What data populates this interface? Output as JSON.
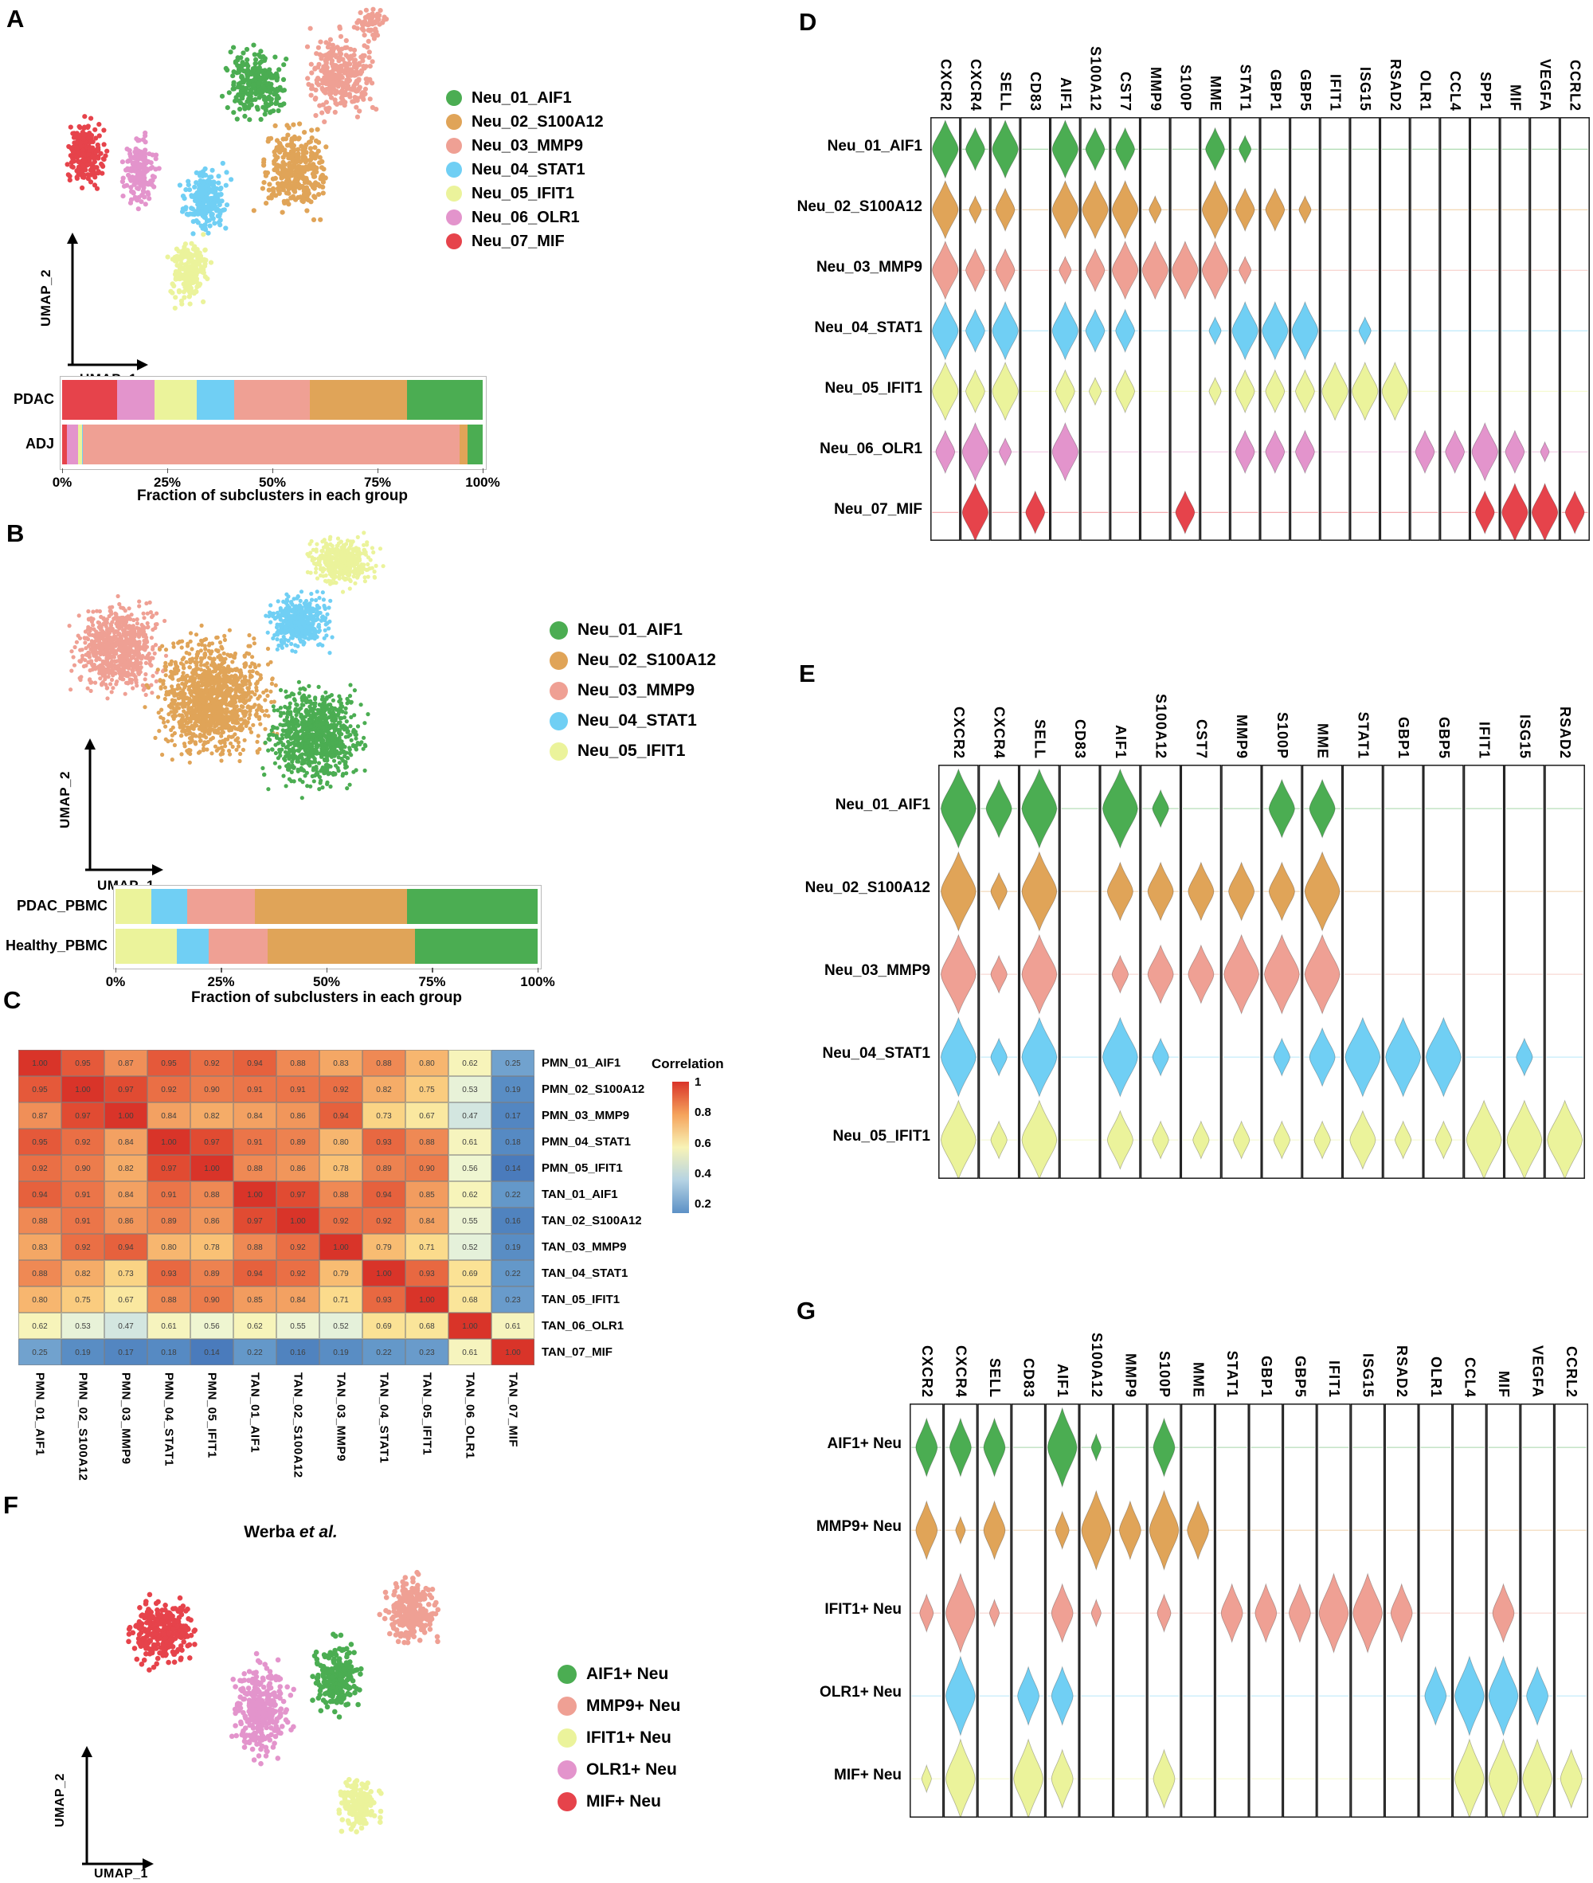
{
  "panel_letters": {
    "A": "A",
    "B": "B",
    "C": "C",
    "D": "D",
    "E": "E",
    "F": "F",
    "G": "G"
  },
  "axis": {
    "x": "UMAP_1",
    "y": "UMAP_2"
  },
  "colors": {
    "green": "#4BAD52",
    "orange": "#E0A458",
    "salmon": "#EFA094",
    "blue": "#70CFF4",
    "yellow": "#EBF39B",
    "orchid": "#E394CC",
    "red": "#E6434B"
  },
  "chart_data": {
    "A": {
      "type": "scatter",
      "legend": [
        {
          "label": "Neu_01_AIF1",
          "color": "green"
        },
        {
          "label": "Neu_02_S100A12",
          "color": "orange"
        },
        {
          "label": "Neu_03_MMP9",
          "color": "salmon"
        },
        {
          "label": "Neu_04_STAT1",
          "color": "blue"
        },
        {
          "label": "Neu_05_IFIT1",
          "color": "yellow"
        },
        {
          "label": "Neu_06_OLR1",
          "color": "orchid"
        },
        {
          "label": "Neu_07_MIF",
          "color": "red"
        }
      ],
      "clusters": [
        {
          "color": "green",
          "cx": 0.52,
          "cy": 0.22,
          "rx": 0.1,
          "ry": 0.13,
          "n": 260
        },
        {
          "color": "salmon",
          "cx": 0.73,
          "cy": 0.2,
          "rx": 0.11,
          "ry": 0.15,
          "n": 320
        },
        {
          "color": "salmon",
          "cx": 0.8,
          "cy": 0.05,
          "rx": 0.05,
          "ry": 0.05,
          "n": 60
        },
        {
          "color": "orange",
          "cx": 0.62,
          "cy": 0.47,
          "rx": 0.11,
          "ry": 0.16,
          "n": 330
        },
        {
          "color": "blue",
          "cx": 0.4,
          "cy": 0.55,
          "rx": 0.07,
          "ry": 0.12,
          "n": 210
        },
        {
          "color": "yellow",
          "cx": 0.36,
          "cy": 0.76,
          "rx": 0.06,
          "ry": 0.12,
          "n": 190
        },
        {
          "color": "orchid",
          "cx": 0.24,
          "cy": 0.47,
          "rx": 0.055,
          "ry": 0.13,
          "n": 170
        },
        {
          "color": "red",
          "cx": 0.11,
          "cy": 0.42,
          "rx": 0.065,
          "ry": 0.12,
          "n": 230
        }
      ],
      "bar": {
        "type": "bar",
        "stacked": true,
        "orientation": "horizontal",
        "xlabel": "Fraction of subclusters in each group",
        "ticks": [
          "0%",
          "25%",
          "50%",
          "75%",
          "100%"
        ],
        "rows": [
          {
            "label": "PDAC",
            "segments": [
              [
                "red",
                13
              ],
              [
                "orchid",
                9
              ],
              [
                "yellow",
                10
              ],
              [
                "blue",
                9
              ],
              [
                "salmon",
                18
              ],
              [
                "orange",
                23
              ],
              [
                "green",
                18
              ]
            ]
          },
          {
            "label": "ADJ",
            "segments": [
              [
                "red",
                1.2
              ],
              [
                "orchid",
                2.6
              ],
              [
                "yellow",
                0.9
              ],
              [
                "blue",
                0.3
              ],
              [
                "salmon",
                89.5
              ],
              [
                "orange",
                2.0
              ],
              [
                "green",
                3.5
              ]
            ]
          }
        ]
      }
    },
    "B": {
      "type": "scatter",
      "legend": [
        {
          "label": "Neu_01_AIF1",
          "color": "green"
        },
        {
          "label": "Neu_02_S100A12",
          "color": "orange"
        },
        {
          "label": "Neu_03_MMP9",
          "color": "salmon"
        },
        {
          "label": "Neu_04_STAT1",
          "color": "blue"
        },
        {
          "label": "Neu_05_IFIT1",
          "color": "yellow"
        }
      ],
      "clusters": [
        {
          "color": "salmon",
          "cx": 0.2,
          "cy": 0.38,
          "rx": 0.13,
          "ry": 0.16,
          "n": 750
        },
        {
          "color": "orange",
          "cx": 0.42,
          "cy": 0.52,
          "rx": 0.17,
          "ry": 0.22,
          "n": 1250
        },
        {
          "color": "blue",
          "cx": 0.62,
          "cy": 0.3,
          "rx": 0.09,
          "ry": 0.1,
          "n": 430
        },
        {
          "color": "yellow",
          "cx": 0.72,
          "cy": 0.13,
          "rx": 0.1,
          "ry": 0.09,
          "n": 430
        },
        {
          "color": "green",
          "cx": 0.66,
          "cy": 0.63,
          "rx": 0.14,
          "ry": 0.18,
          "n": 900
        }
      ],
      "bar": {
        "type": "bar",
        "stacked": true,
        "orientation": "horizontal",
        "xlabel": "Fraction of subclusters in each group",
        "ticks": [
          "0%",
          "25%",
          "50%",
          "75%",
          "100%"
        ],
        "rows": [
          {
            "label": "PDAC_PBMC",
            "segments": [
              [
                "yellow",
                8.5
              ],
              [
                "blue",
                8.5
              ],
              [
                "salmon",
                16
              ],
              [
                "orange",
                36
              ],
              [
                "green",
                31
              ]
            ]
          },
          {
            "label": "Healthy_PBMC",
            "segments": [
              [
                "yellow",
                14.5
              ],
              [
                "blue",
                7.5
              ],
              [
                "salmon",
                14
              ],
              [
                "orange",
                35
              ],
              [
                "green",
                29
              ]
            ]
          }
        ]
      }
    },
    "C": {
      "type": "heatmap",
      "rows": [
        "PMN_01_AIF1",
        "PMN_02_S100A12",
        "PMN_03_MMP9",
        "PMN_04_STAT1",
        "PMN_05_IFIT1",
        "TAN_01_AIF1",
        "TAN_02_S100A12",
        "TAN_03_MMP9",
        "TAN_04_STAT1",
        "TAN_05_IFIT1",
        "TAN_06_OLR1",
        "TAN_07_MIF"
      ],
      "cols": [
        "PMN_01_AIF1",
        "PMN_02_S100A12",
        "PMN_03_MMP9",
        "PMN_04_STAT1",
        "PMN_05_IFIT1",
        "TAN_01_AIF1",
        "TAN_02_S100A12",
        "TAN_03_MMP9",
        "TAN_04_STAT1",
        "TAN_05_IFIT1",
        "TAN_06_OLR1",
        "TAN_07_MIF"
      ],
      "values": [
        [
          1.0,
          0.95,
          0.87,
          0.95,
          0.92,
          0.94,
          0.88,
          0.83,
          0.88,
          0.8,
          0.62,
          0.25
        ],
        [
          0.95,
          1.0,
          0.97,
          0.92,
          0.9,
          0.91,
          0.91,
          0.92,
          0.82,
          0.75,
          0.53,
          0.19
        ],
        [
          0.87,
          0.97,
          1.0,
          0.84,
          0.82,
          0.84,
          0.86,
          0.94,
          0.73,
          0.67,
          0.47,
          0.17
        ],
        [
          0.95,
          0.92,
          0.84,
          1.0,
          0.97,
          0.91,
          0.89,
          0.8,
          0.93,
          0.88,
          0.61,
          0.18
        ],
        [
          0.92,
          0.9,
          0.82,
          0.97,
          1.0,
          0.88,
          0.86,
          0.78,
          0.89,
          0.9,
          0.56,
          0.14
        ],
        [
          0.94,
          0.91,
          0.84,
          0.91,
          0.88,
          1.0,
          0.97,
          0.88,
          0.94,
          0.85,
          0.62,
          0.22
        ],
        [
          0.88,
          0.91,
          0.86,
          0.89,
          0.86,
          0.97,
          1.0,
          0.92,
          0.92,
          0.84,
          0.55,
          0.16
        ],
        [
          0.83,
          0.92,
          0.94,
          0.8,
          0.78,
          0.88,
          0.92,
          1.0,
          0.79,
          0.71,
          0.52,
          0.19
        ],
        [
          0.88,
          0.82,
          0.73,
          0.93,
          0.89,
          0.94,
          0.92,
          0.79,
          1.0,
          0.93,
          0.69,
          0.22
        ],
        [
          0.8,
          0.75,
          0.67,
          0.88,
          0.9,
          0.85,
          0.84,
          0.71,
          0.93,
          1.0,
          0.68,
          0.23
        ],
        [
          0.62,
          0.53,
          0.47,
          0.61,
          0.56,
          0.62,
          0.55,
          0.52,
          0.69,
          0.68,
          1.0,
          0.61
        ],
        [
          0.25,
          0.19,
          0.17,
          0.18,
          0.14,
          0.22,
          0.16,
          0.19,
          0.22,
          0.23,
          0.61,
          1.0
        ]
      ],
      "colorbar": {
        "title": "Correlation",
        "ticks": [
          1,
          0.8,
          0.6,
          0.4,
          0.2
        ],
        "vmin": 0.14,
        "vmax": 1,
        "colors": [
          "#D93429",
          "#F5A35C",
          "#F8F3B6",
          "#B5D3E3",
          "#5C91C6"
        ]
      }
    },
    "D": {
      "type": "violin",
      "genes": [
        "CXCR2",
        "CXCR4",
        "SELL",
        "CD83",
        "AIF1",
        "S100A12",
        "CST7",
        "MMP9",
        "S100P",
        "MME",
        "STAT1",
        "GBP1",
        "GBP5",
        "IFIT1",
        "ISG15",
        "RSAD2",
        "OLR1",
        "CCL4",
        "SPP1",
        "MIF",
        "VEGFA",
        "CCRL2"
      ],
      "rows": [
        {
          "label": "Neu_01_AIF1",
          "color": "green",
          "sizes": [
            3,
            2,
            3,
            0,
            3,
            2,
            2,
            0,
            0,
            2,
            1,
            0,
            0,
            0,
            0,
            0,
            0,
            0,
            0,
            0,
            0,
            0
          ]
        },
        {
          "label": "Neu_02_S100A12",
          "color": "orange",
          "sizes": [
            3,
            1,
            2,
            0,
            3,
            3,
            3,
            1,
            0,
            3,
            2,
            2,
            1,
            0,
            0,
            0,
            0,
            0,
            0,
            0,
            0,
            0
          ]
        },
        {
          "label": "Neu_03_MMP9",
          "color": "salmon",
          "sizes": [
            3,
            2,
            2,
            0,
            1,
            2,
            3,
            3,
            3,
            3,
            1,
            0,
            0,
            0,
            0,
            0,
            0,
            0,
            0,
            0,
            0,
            0
          ]
        },
        {
          "label": "Neu_04_STAT1",
          "color": "blue",
          "sizes": [
            3,
            2,
            3,
            0,
            3,
            2,
            2,
            0,
            0,
            1,
            3,
            3,
            3,
            0,
            1,
            0,
            0,
            0,
            0,
            0,
            0,
            0
          ]
        },
        {
          "label": "Neu_05_IFIT1",
          "color": "yellow",
          "sizes": [
            3,
            2,
            3,
            0,
            2,
            1,
            2,
            0,
            0,
            1,
            2,
            2,
            2,
            3,
            3,
            3,
            0,
            0,
            0,
            0,
            0,
            0
          ]
        },
        {
          "label": "Neu_06_OLR1",
          "color": "orchid",
          "sizes": [
            2,
            3,
            1,
            0,
            3,
            0,
            0,
            0,
            0,
            0,
            2,
            2,
            2,
            0,
            0,
            0,
            2,
            2,
            3,
            2,
            0.5,
            0
          ]
        },
        {
          "label": "Neu_07_MIF",
          "color": "red",
          "sizes": [
            0,
            3,
            0,
            2,
            0,
            0,
            0,
            0,
            2,
            0,
            0,
            0,
            0,
            0,
            0,
            0,
            0,
            0,
            2,
            3,
            3,
            2
          ]
        }
      ]
    },
    "E": {
      "type": "violin",
      "genes": [
        "CXCR2",
        "CXCR4",
        "SELL",
        "CD83",
        "AIF1",
        "S100A12",
        "CST7",
        "MMP9",
        "S100P",
        "MME",
        "STAT1",
        "GBP1",
        "GBP5",
        "IFIT1",
        "ISG15",
        "RSAD2"
      ],
      "rows": [
        {
          "label": "Neu_01_AIF1",
          "color": "green",
          "sizes": [
            3,
            2,
            3,
            0,
            3,
            1,
            0,
            0,
            2,
            2,
            0,
            0,
            0,
            0,
            0,
            0
          ]
        },
        {
          "label": "Neu_02_S100A12",
          "color": "orange",
          "sizes": [
            3,
            1,
            3,
            0,
            2,
            2,
            2,
            2,
            2,
            3,
            0,
            0,
            0,
            0,
            0,
            0
          ]
        },
        {
          "label": "Neu_03_MMP9",
          "color": "salmon",
          "sizes": [
            3,
            1,
            3,
            0,
            1,
            2,
            2,
            3,
            3,
            3,
            0,
            0,
            0,
            0,
            0,
            0
          ]
        },
        {
          "label": "Neu_04_STAT1",
          "color": "blue",
          "sizes": [
            3,
            1,
            3,
            0,
            3,
            1,
            0,
            0,
            1,
            2,
            3,
            3,
            3,
            0,
            1,
            0
          ]
        },
        {
          "label": "Neu_05_IFIT1",
          "color": "yellow",
          "sizes": [
            3,
            1,
            3,
            0,
            2,
            1,
            1,
            1,
            1,
            1,
            2,
            1,
            1,
            3,
            3,
            3
          ]
        }
      ]
    },
    "F": {
      "type": "scatter",
      "title_main": "Werba ",
      "title_italic": "et al.",
      "legend": [
        {
          "label": "AIF1+ Neu",
          "color": "green"
        },
        {
          "label": "MMP9+ Neu",
          "color": "salmon"
        },
        {
          "label": "IFIT1+ Neu",
          "color": "yellow"
        },
        {
          "label": "OLR1+ Neu",
          "color": "orchid"
        },
        {
          "label": "MIF+ Neu",
          "color": "red"
        }
      ],
      "clusters": [
        {
          "color": "red",
          "cx": 0.16,
          "cy": 0.25,
          "rx": 0.11,
          "ry": 0.13,
          "n": 280
        },
        {
          "color": "orchid",
          "cx": 0.42,
          "cy": 0.5,
          "rx": 0.1,
          "ry": 0.2,
          "n": 300
        },
        {
          "color": "green",
          "cx": 0.62,
          "cy": 0.4,
          "rx": 0.08,
          "ry": 0.16,
          "n": 240
        },
        {
          "color": "salmon",
          "cx": 0.82,
          "cy": 0.18,
          "rx": 0.09,
          "ry": 0.14,
          "n": 260
        },
        {
          "color": "yellow",
          "cx": 0.68,
          "cy": 0.8,
          "rx": 0.07,
          "ry": 0.11,
          "n": 170
        }
      ]
    },
    "G": {
      "type": "violin",
      "genes": [
        "CXCR2",
        "CXCR4",
        "SELL",
        "CD83",
        "AIF1",
        "S100A12",
        "MMP9",
        "S100P",
        "MME",
        "STAT1",
        "GBP1",
        "GBP5",
        "IFIT1",
        "ISG15",
        "RSAD2",
        "OLR1",
        "CCL4",
        "MIF",
        "VEGFA",
        "CCRL2"
      ],
      "rows": [
        {
          "label": "AIF1+ Neu",
          "color": "green",
          "sizes": [
            2,
            2,
            2,
            0,
            3,
            0.5,
            0,
            2,
            0,
            0,
            0,
            0,
            0,
            0,
            0,
            0,
            0,
            0,
            0,
            0
          ]
        },
        {
          "label": "MMP9+ Neu",
          "color": "orange",
          "sizes": [
            2,
            0.5,
            2,
            0,
            1,
            3,
            2,
            3,
            2,
            0,
            0,
            0,
            0,
            0,
            0,
            0,
            0,
            0,
            0,
            0
          ]
        },
        {
          "label": "IFIT1+ Neu",
          "color": "salmon",
          "sizes": [
            1,
            3,
            0.5,
            0,
            2,
            0.5,
            0,
            1,
            0,
            2,
            2,
            2,
            3,
            3,
            2,
            0,
            0,
            2,
            0,
            0
          ]
        },
        {
          "label": "OLR1+ Neu",
          "color": "blue",
          "sizes": [
            0,
            3,
            0,
            2,
            2,
            0,
            0,
            0,
            0,
            0,
            0,
            0,
            0,
            0,
            0,
            2,
            3,
            3,
            2,
            0
          ]
        },
        {
          "label": "MIF+ Neu",
          "color": "yellow",
          "sizes": [
            0.5,
            3,
            0,
            3,
            2,
            0,
            0,
            2,
            0,
            0,
            0,
            0,
            0,
            0,
            0,
            0,
            3,
            3,
            3,
            2
          ]
        }
      ]
    }
  }
}
